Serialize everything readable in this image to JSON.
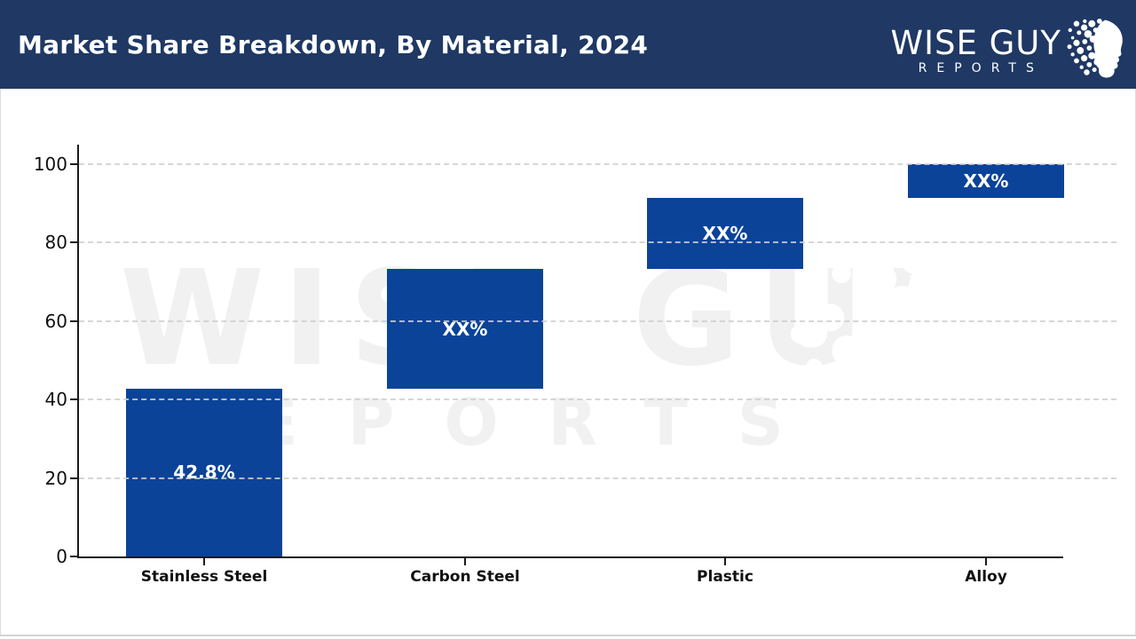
{
  "header": {
    "title": "Market Share Breakdown, By Material, 2024",
    "bg_color": "#1f3864",
    "logo": {
      "line1": "WISE GUY",
      "line2": "REPORTS"
    }
  },
  "watermark": {
    "line1": "WISE GUY",
    "line2": "REPORTS"
  },
  "chart_data": {
    "type": "bar",
    "subtype": "waterfall",
    "title": "Market Share Breakdown, By Material, 2024",
    "categories": [
      "Stainless Steel",
      "Carbon Steel",
      "Plastic",
      "Alloy"
    ],
    "series": [
      {
        "name": "Market share (%)",
        "segments": [
          {
            "category": "Stainless Steel",
            "base": 0,
            "top": 42.8,
            "label": "42.8%"
          },
          {
            "category": "Carbon Steel",
            "base": 42.8,
            "top": 73.2,
            "label": "XX%"
          },
          {
            "category": "Plastic",
            "base": 73.2,
            "top": 91.5,
            "label": "XX%"
          },
          {
            "category": "Alloy",
            "base": 91.5,
            "top": 100,
            "label": "XX%"
          }
        ]
      }
    ],
    "xlabel": "",
    "ylabel": "",
    "ylim": [
      0,
      105
    ],
    "yticks": [
      0,
      20,
      40,
      60,
      80,
      100
    ],
    "grid": "horizontal-dashed",
    "legend": "none",
    "bar_color": "#0b4399",
    "label_color": "#ffffff"
  }
}
